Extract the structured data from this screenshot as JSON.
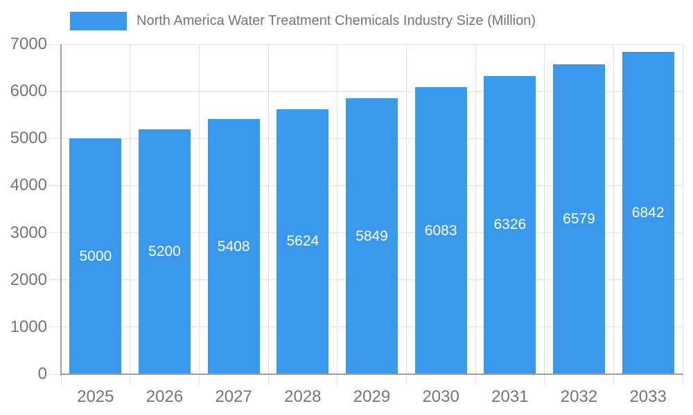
{
  "legend": {
    "label": "North America Water Treatment Chemicals Industry Size (Million)"
  },
  "chart_data": {
    "type": "bar",
    "title": "North America Water Treatment Chemicals Industry Size (Million)",
    "categories": [
      "2025",
      "2026",
      "2027",
      "2028",
      "2029",
      "2030",
      "2031",
      "2032",
      "2033"
    ],
    "values": [
      5000,
      5200,
      5408,
      5624,
      5849,
      6083,
      6326,
      6579,
      6842
    ],
    "bar_value_labels": [
      "5000",
      "5200",
      "5408",
      "5624",
      "5849",
      "6083",
      "6326",
      "6579",
      "6842"
    ],
    "xlabel": "",
    "ylabel": "",
    "ylim": [
      0,
      7000
    ],
    "yticks": [
      0,
      1000,
      2000,
      3000,
      4000,
      5000,
      6000,
      7000
    ],
    "grid": true,
    "legend_position": "top-left",
    "colors": {
      "bar": "#3b99ec",
      "text": "#757575",
      "grid": "#e0e0e0",
      "axis": "#9e9e9e",
      "bar_label": "#ffffff",
      "background": "#ffffff"
    }
  }
}
